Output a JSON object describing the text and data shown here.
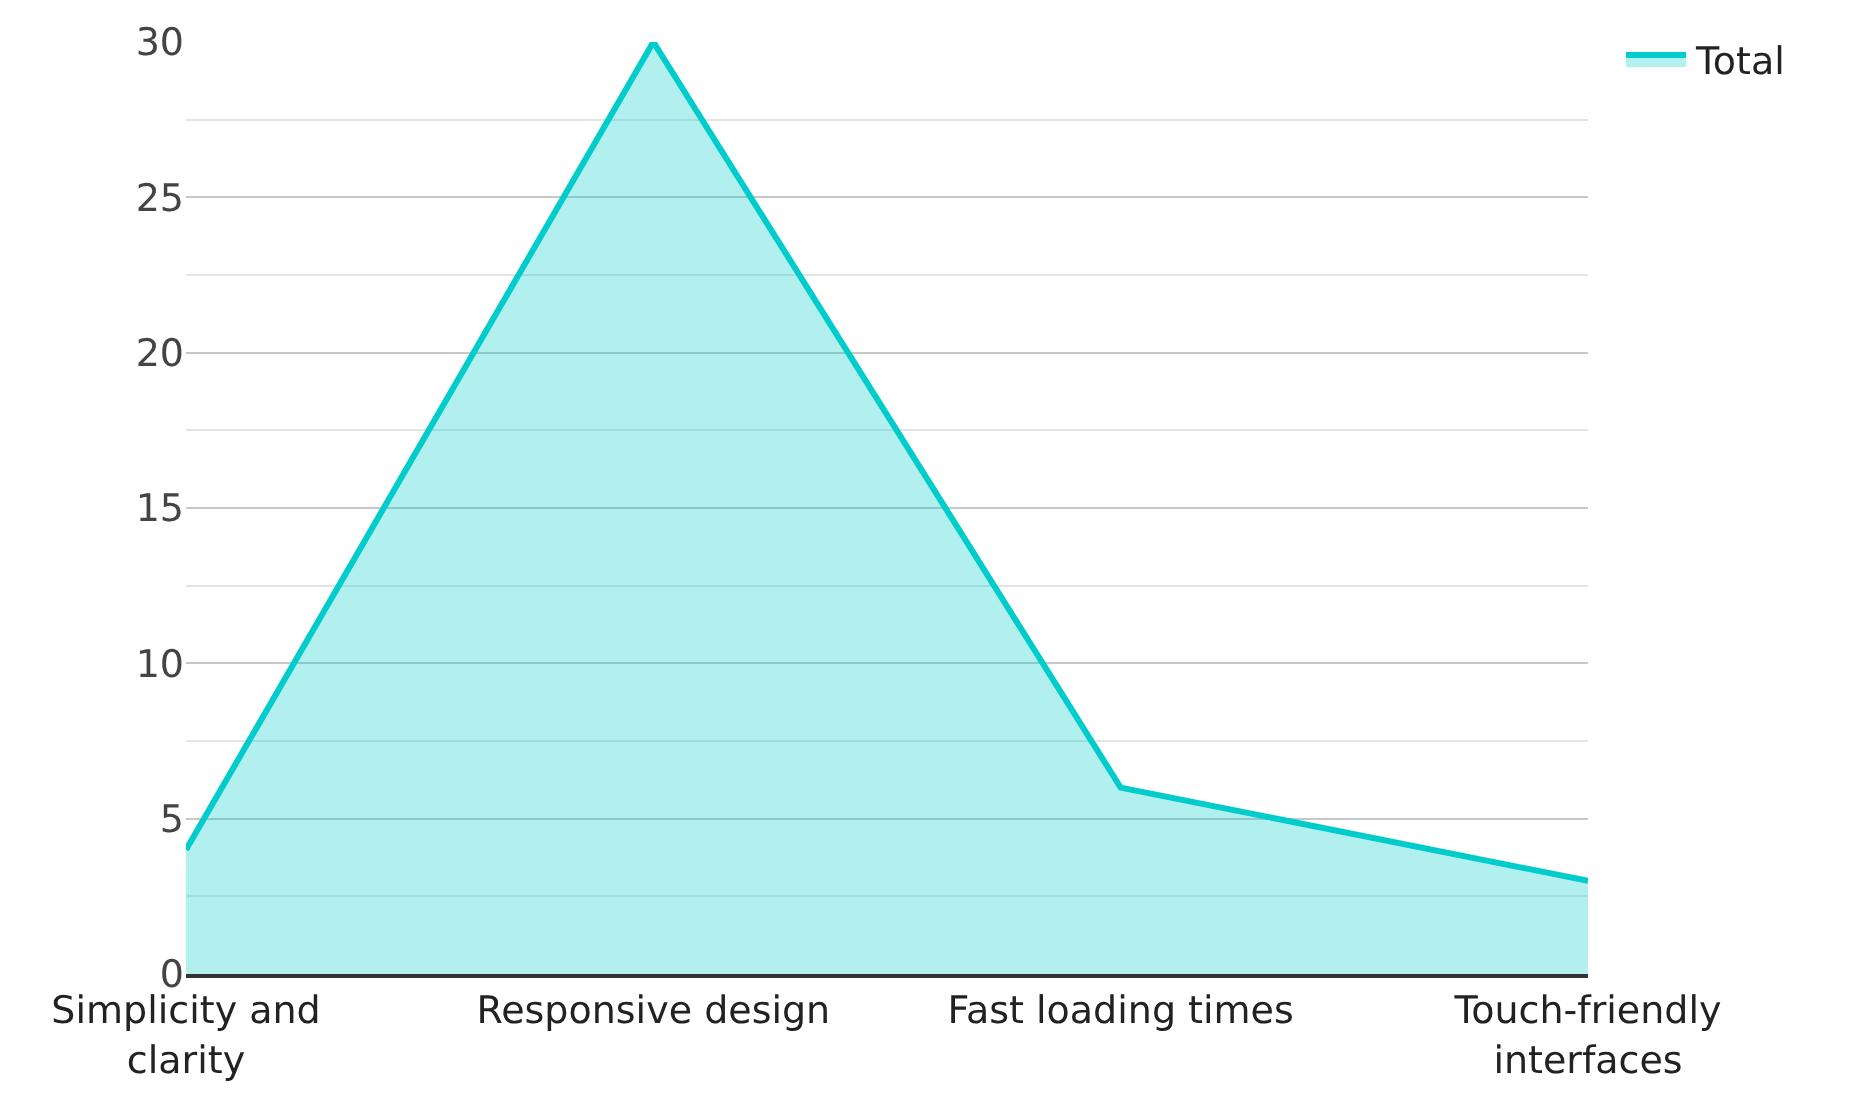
{
  "chart_data": {
    "type": "area",
    "categories": [
      "Simplicity and clarity",
      "Responsive design",
      "Fast loading times",
      "Touch-friendly interfaces"
    ],
    "series": [
      {
        "name": "Total",
        "color": "#00cccc",
        "values": [
          4,
          30,
          6,
          3
        ]
      }
    ],
    "ylim": [
      0,
      30
    ],
    "yticks": [
      0,
      {
        "value": 2.5,
        "label": null
      },
      5,
      {
        "value": 7.5,
        "label": null
      },
      10,
      {
        "value": 12.5,
        "label": null
      },
      15,
      {
        "value": 17.5,
        "label": null
      },
      20,
      {
        "value": 22.5,
        "label": null
      },
      25,
      {
        "value": 27.5,
        "label": null
      },
      30
    ],
    "grid": "y",
    "legend": "top right"
  }
}
